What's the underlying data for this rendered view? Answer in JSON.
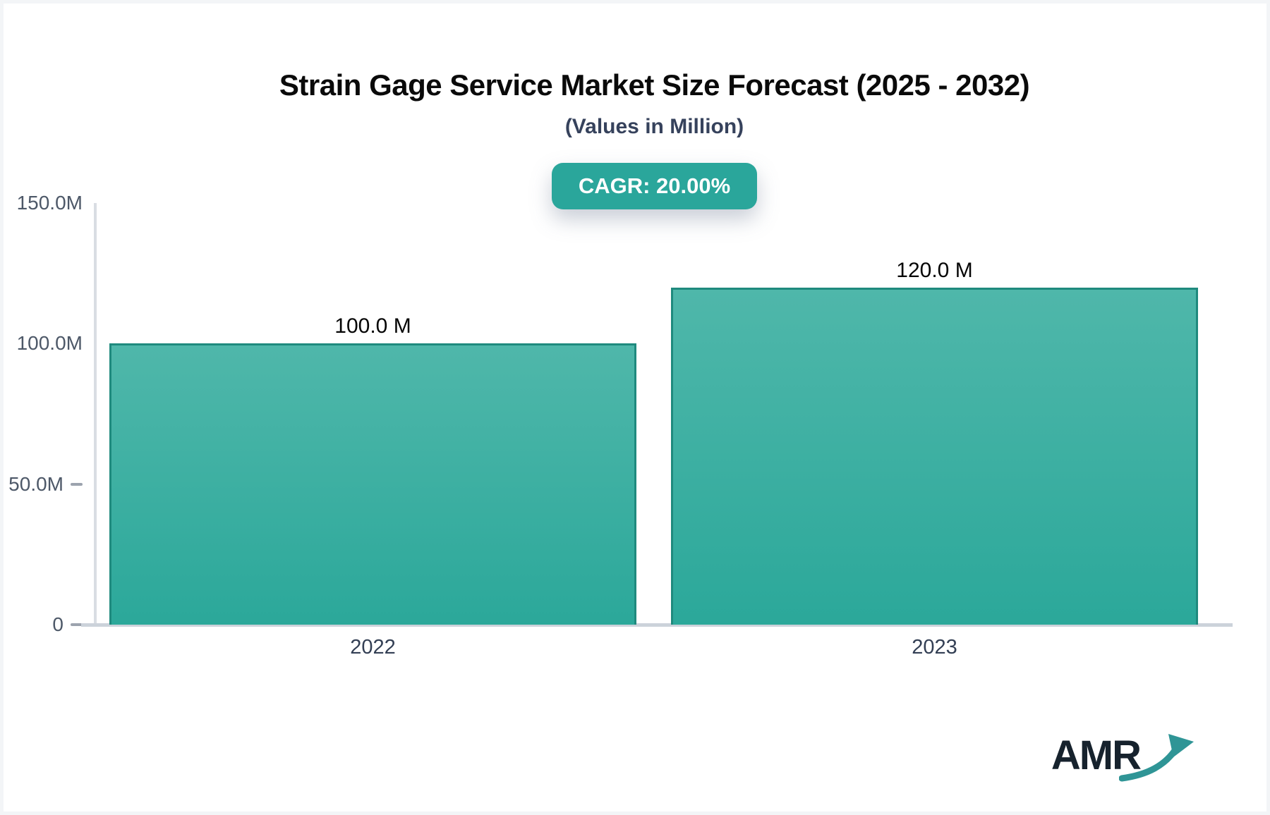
{
  "chart_data": {
    "type": "bar",
    "title": "Strain Gage Service Market Size Forecast (2025 - 2032)",
    "subtitle": "(Values in Million)",
    "badge": "CAGR: 20.00%",
    "categories": [
      "2022",
      "2023"
    ],
    "values": [
      100.0,
      120.0
    ],
    "bar_labels": [
      "100.0 M",
      "120.0 M"
    ],
    "ylabel": "",
    "xlabel": "",
    "ylim": [
      0,
      150
    ],
    "grid": false,
    "yticks": [
      {
        "label": "150.0M",
        "value": 150,
        "dash": false
      },
      {
        "label": "100.0M",
        "value": 100,
        "dash": false
      },
      {
        "label": "50.0M",
        "value": 50,
        "dash": true
      },
      {
        "label": "0",
        "value": 0,
        "dash": true
      }
    ],
    "bar_color_top": "#4fb7aa",
    "bar_color_bottom": "#2ba89a",
    "bar_border_color": "#1f8a7e",
    "badge_color": "#2aa69b"
  },
  "logo": {
    "text": "AMR",
    "icon": "growth-arrow-icon",
    "text_color": "#16222d",
    "arrow_color": "#2f9596"
  }
}
